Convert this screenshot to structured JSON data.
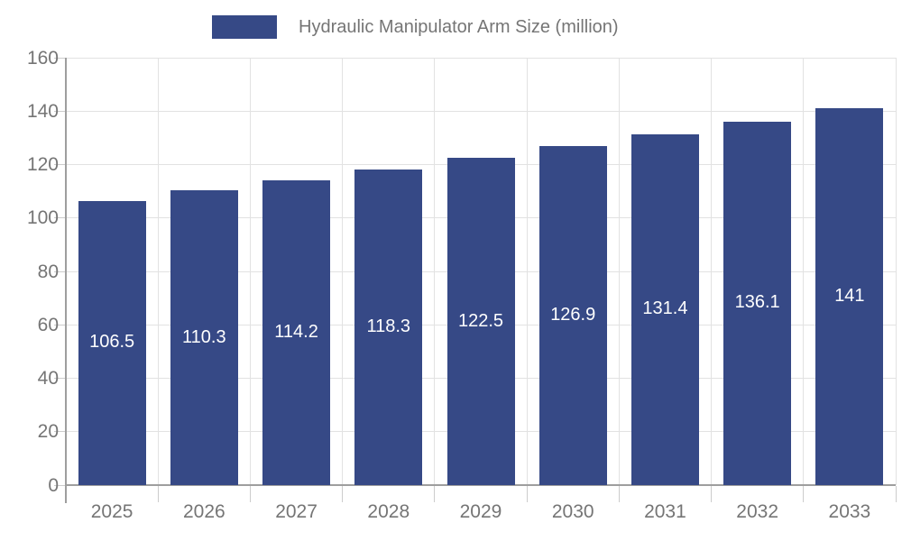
{
  "legend": {
    "label": "Hydraulic Manipulator Arm Size (million)"
  },
  "chart_data": {
    "type": "bar",
    "title": "Hydraulic Manipulator Arm Size (million)",
    "categories": [
      "2025",
      "2026",
      "2027",
      "2028",
      "2029",
      "2030",
      "2031",
      "2032",
      "2033"
    ],
    "values": [
      106.5,
      110.3,
      114.2,
      118.3,
      122.5,
      126.9,
      131.4,
      136.1,
      141
    ],
    "value_labels": [
      "106.5",
      "110.3",
      "114.2",
      "118.3",
      "122.5",
      "126.9",
      "131.4",
      "136.1",
      "141"
    ],
    "xlabel": "",
    "ylabel": "",
    "ylim": [
      0,
      160
    ],
    "ytick_step": 20,
    "ytick_labels": [
      "0",
      "20",
      "40",
      "60",
      "80",
      "100",
      "120",
      "140",
      "160"
    ],
    "grid": true,
    "legend_position": "top",
    "colors": {
      "bar": "#364986",
      "value_label": "#ffffff",
      "axis_text": "#757575",
      "gridline": "#e2e2e2",
      "axis_line": "#9e9e9e",
      "tick": "#cccccc",
      "background": "#ffffff"
    }
  }
}
